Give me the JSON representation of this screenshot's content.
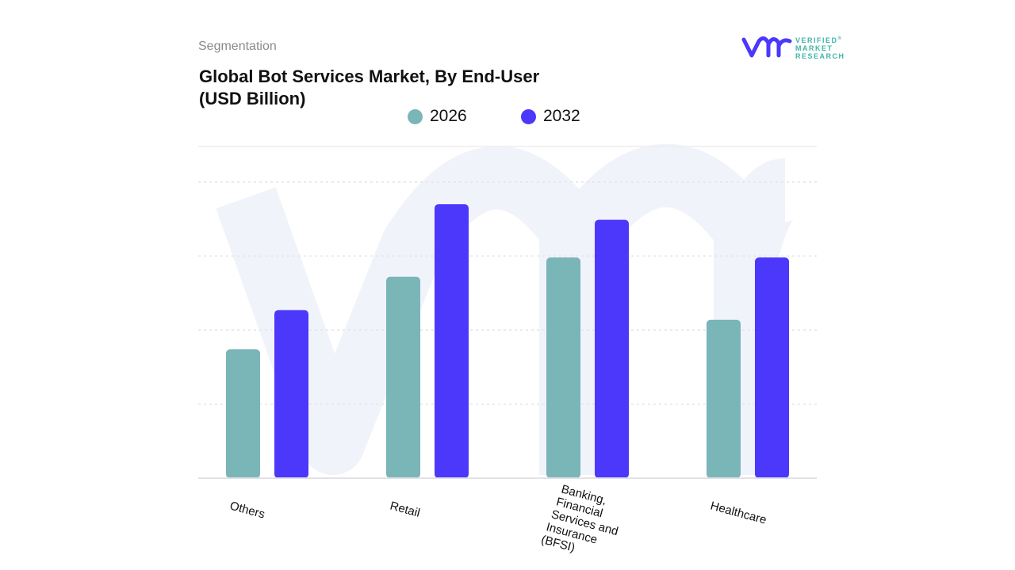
{
  "header": {
    "section": "Segmentation",
    "title_line1": "Global Bot Services Market, By End-User",
    "title_line2": "(USD Billion)"
  },
  "logo": {
    "text_line1": "VERIFIED",
    "text_line2": "MARKET",
    "text_line3": "RESEARCH",
    "registered": "®"
  },
  "colors": {
    "2026": "#7ab5b8",
    "2032": "#4b38fb",
    "watermark": "#f1f3fb",
    "grid": "#e4e4e8"
  },
  "chart_data": {
    "type": "bar",
    "title": "Global Bot Services Market, By End-User (USD Billion)",
    "categories": [
      "Others",
      "Retail",
      "Banking, Financial Services and Insurance (BFSI)",
      "Healthcare"
    ],
    "category_label_lines": [
      [
        "Others"
      ],
      [
        "Retail"
      ],
      [
        "Banking,",
        "Financial",
        "Services and",
        "Insurance",
        "(BFSI)"
      ],
      [
        "Healthcare"
      ]
    ],
    "series": [
      {
        "name": "2026",
        "values": [
          1.74,
          2.72,
          2.98,
          2.14
        ]
      },
      {
        "name": "2032",
        "values": [
          2.27,
          3.7,
          3.49,
          2.98
        ]
      }
    ],
    "ylim": [
      0,
      4.48
    ],
    "y_gridlines": [
      1,
      2,
      3,
      4
    ],
    "yaxis_labels_shown": false,
    "grid": true,
    "legend_position": "top"
  }
}
